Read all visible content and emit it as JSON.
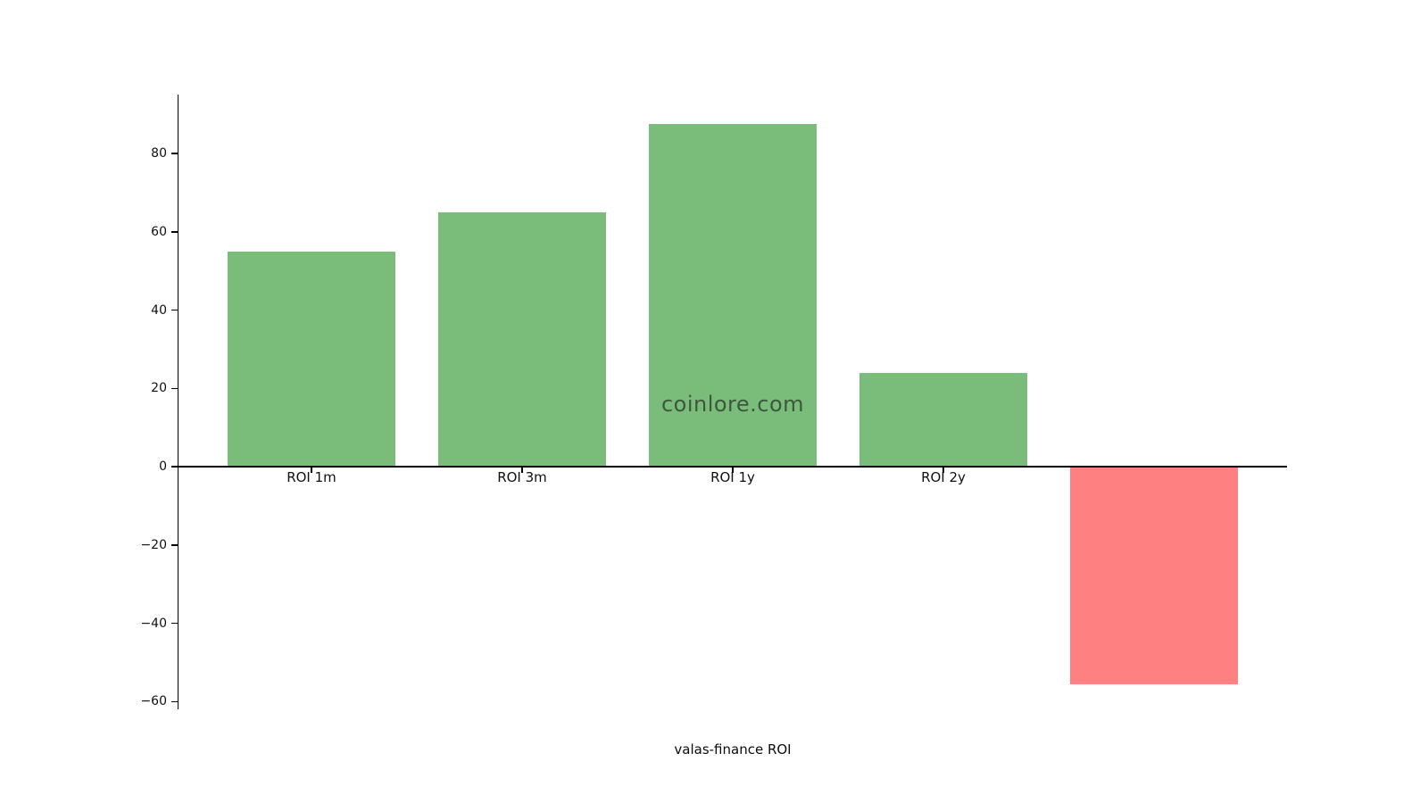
{
  "page": {
    "background_color": "#ffffff"
  },
  "chart_data": {
    "type": "bar",
    "categories": [
      "ROI 1m",
      "ROI 3m",
      "ROI 1y",
      "ROI 2y",
      ""
    ],
    "values": [
      55,
      65,
      87.5,
      24,
      -55.5
    ],
    "bar_colors": [
      "#7abd7a",
      "#7abd7a",
      "#7abd7a",
      "#7abd7a",
      "#ff8080"
    ],
    "positive_color": "#7abd7a",
    "negative_color": "#ff8080",
    "title": "",
    "xlabel": "valas-finance ROI",
    "ylabel": "",
    "yticks": [
      80,
      60,
      40,
      20,
      0,
      -20,
      -40,
      -60
    ],
    "ytick_labels": [
      "80",
      "60",
      "40",
      "20",
      "0",
      "−20",
      "−40",
      "−60"
    ],
    "ylim": [
      -62,
      95
    ],
    "grid": false,
    "legend": false,
    "axis_color": "#000000",
    "watermark": "coinlore.com"
  }
}
